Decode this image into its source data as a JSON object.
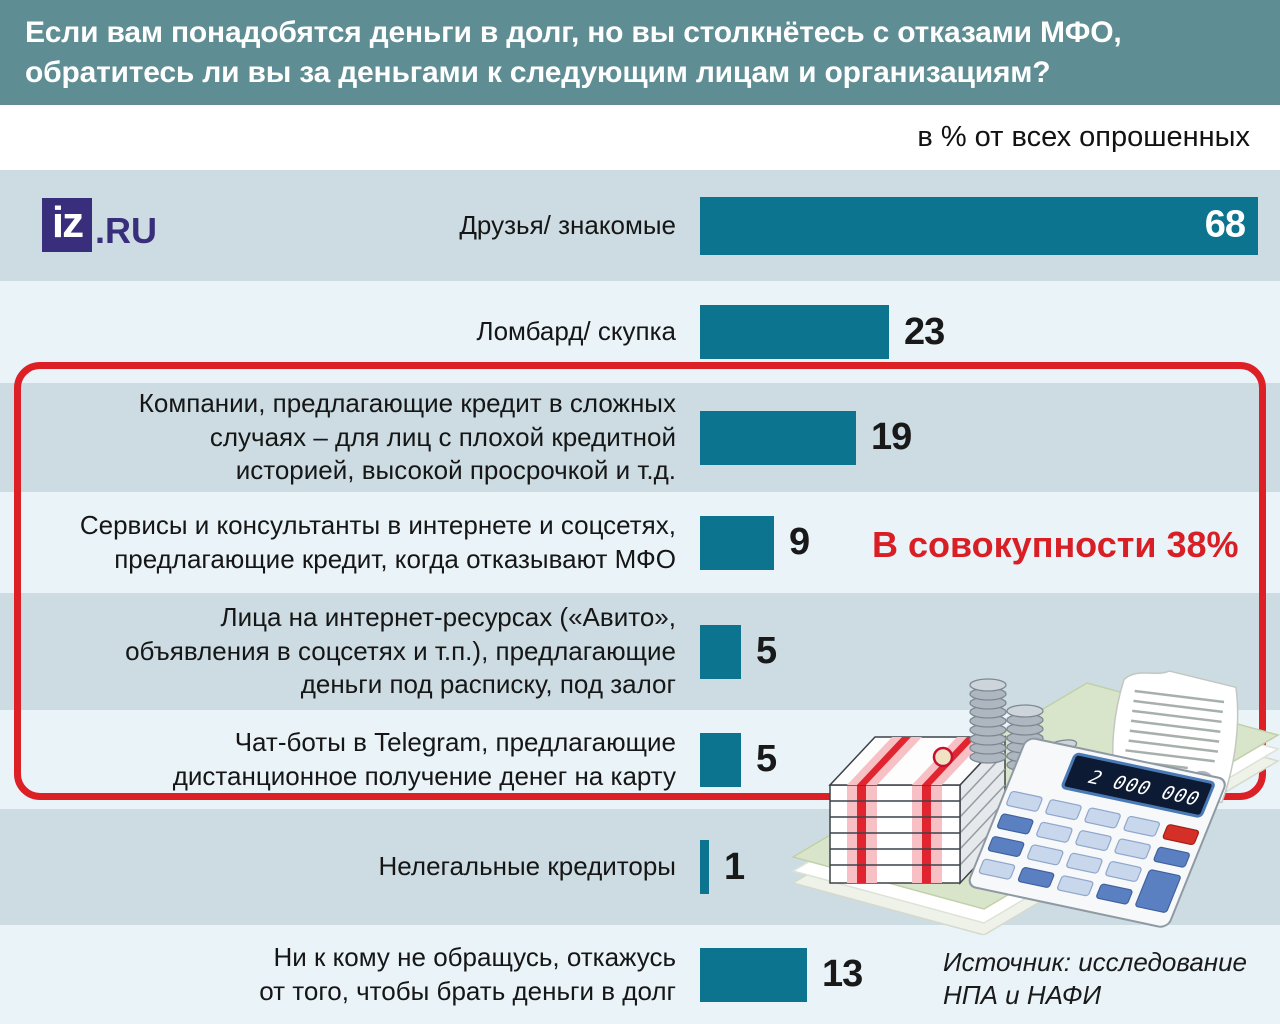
{
  "header": {
    "title": "Если вам понадобятся деньги в долг, но вы столкнётесь с отказами МФО,\nобратитесь ли вы за деньгами к следующим лицам и организациям?"
  },
  "subtitle": "в % от всех опрошенных",
  "logo": {
    "mark": "iz",
    "suffix": ".RU"
  },
  "chart_data": {
    "type": "bar",
    "orientation": "horizontal",
    "units": "% от всех опрошенных",
    "categories": [
      "Друзья/ знакомые",
      "Ломбард/ скупка",
      "Компании, предлагающие кредит в сложных\nслучаях – для лиц с плохой кредитной\nисторией, высокой просрочкой и т.д.",
      "Сервисы и консультанты в интернете и соцсетях,\nпредлагающие кредит, когда отказывают МФО",
      "Лица на интернет-ресурсах («Авито»,\nобъявления в соцсетях и т.п.), предлагающие\nденьги под расписку, под залог",
      "Чат-боты в Telegram, предлагающие\nдистанционное получение денег на карту",
      "Нелегальные кредиторы",
      "Ни к кому не обращусь, откажусь\nот того, чтобы брать деньги в долг"
    ],
    "values": [
      68,
      23,
      19,
      9,
      5,
      5,
      1,
      13
    ],
    "xlim": [
      0,
      72
    ],
    "bar_color": "#0d7490",
    "annotation": {
      "text": "В совокупности 38%",
      "applies_to_category_indices": [
        2,
        3,
        4,
        5
      ],
      "box_color": "#dd1f26"
    }
  },
  "source": "Источник: исследование\nНПА и НАФИ",
  "illustration": {
    "name": "money-stack-coins-calculator-receipt",
    "calculator_display": "2 000 000"
  },
  "colors": {
    "header_bg": "#5e8d93",
    "row_dark": "#ccdce2",
    "row_light": "#e9f3f8",
    "bar": "#0d7490",
    "accent_red": "#dd1f26",
    "logo_indigo": "#382e7b",
    "text": "#161616"
  }
}
